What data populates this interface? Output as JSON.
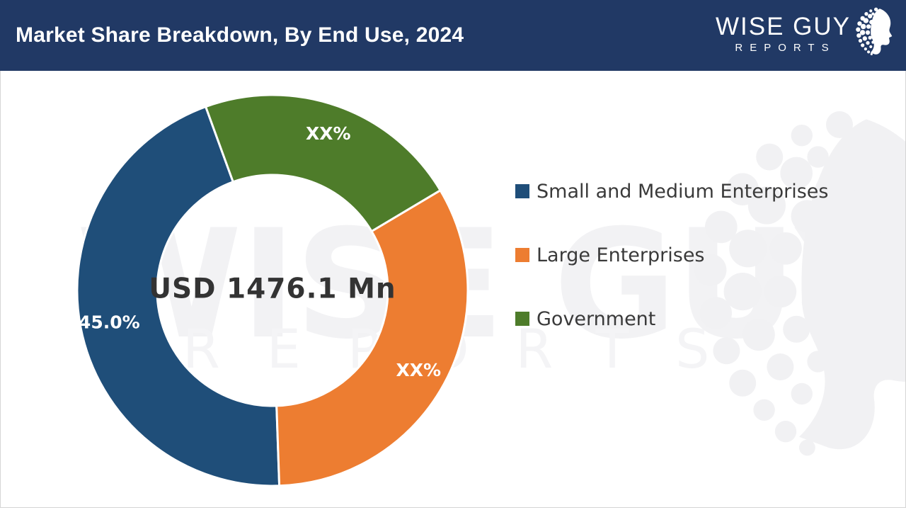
{
  "header": {
    "title": "Market Share Breakdown, By End Use, 2024",
    "bg_color": "#213965",
    "logo": {
      "wordmark": "WISE GUY",
      "subtitle": "REPORTS"
    }
  },
  "chart_data": {
    "type": "pie",
    "subtype": "donut",
    "title": "Market Share Breakdown, By End Use, 2024",
    "center_label": "USD 1476.1 Mn",
    "start_angle_deg": 110,
    "direction": "counterclockwise",
    "legend_position": "right",
    "segments": [
      {
        "label": "Small and Medium Enterprises",
        "display_label": "45.0%",
        "value_pct": 45.0,
        "arc_pct_estimate": 45.0,
        "color": "#1F4E79"
      },
      {
        "label": "Large Enterprises",
        "display_label": "XX%",
        "value_pct": null,
        "arc_pct_estimate": 33.0,
        "color": "#ED7D31"
      },
      {
        "label": "Government",
        "display_label": "XX%",
        "value_pct": null,
        "arc_pct_estimate": 22.0,
        "color": "#4E7C2A"
      }
    ]
  },
  "watermark": {
    "wordmark": "WISE GUY",
    "subtitle": "REPORTS"
  },
  "frame": {
    "border_color": "#d5d5d5"
  }
}
